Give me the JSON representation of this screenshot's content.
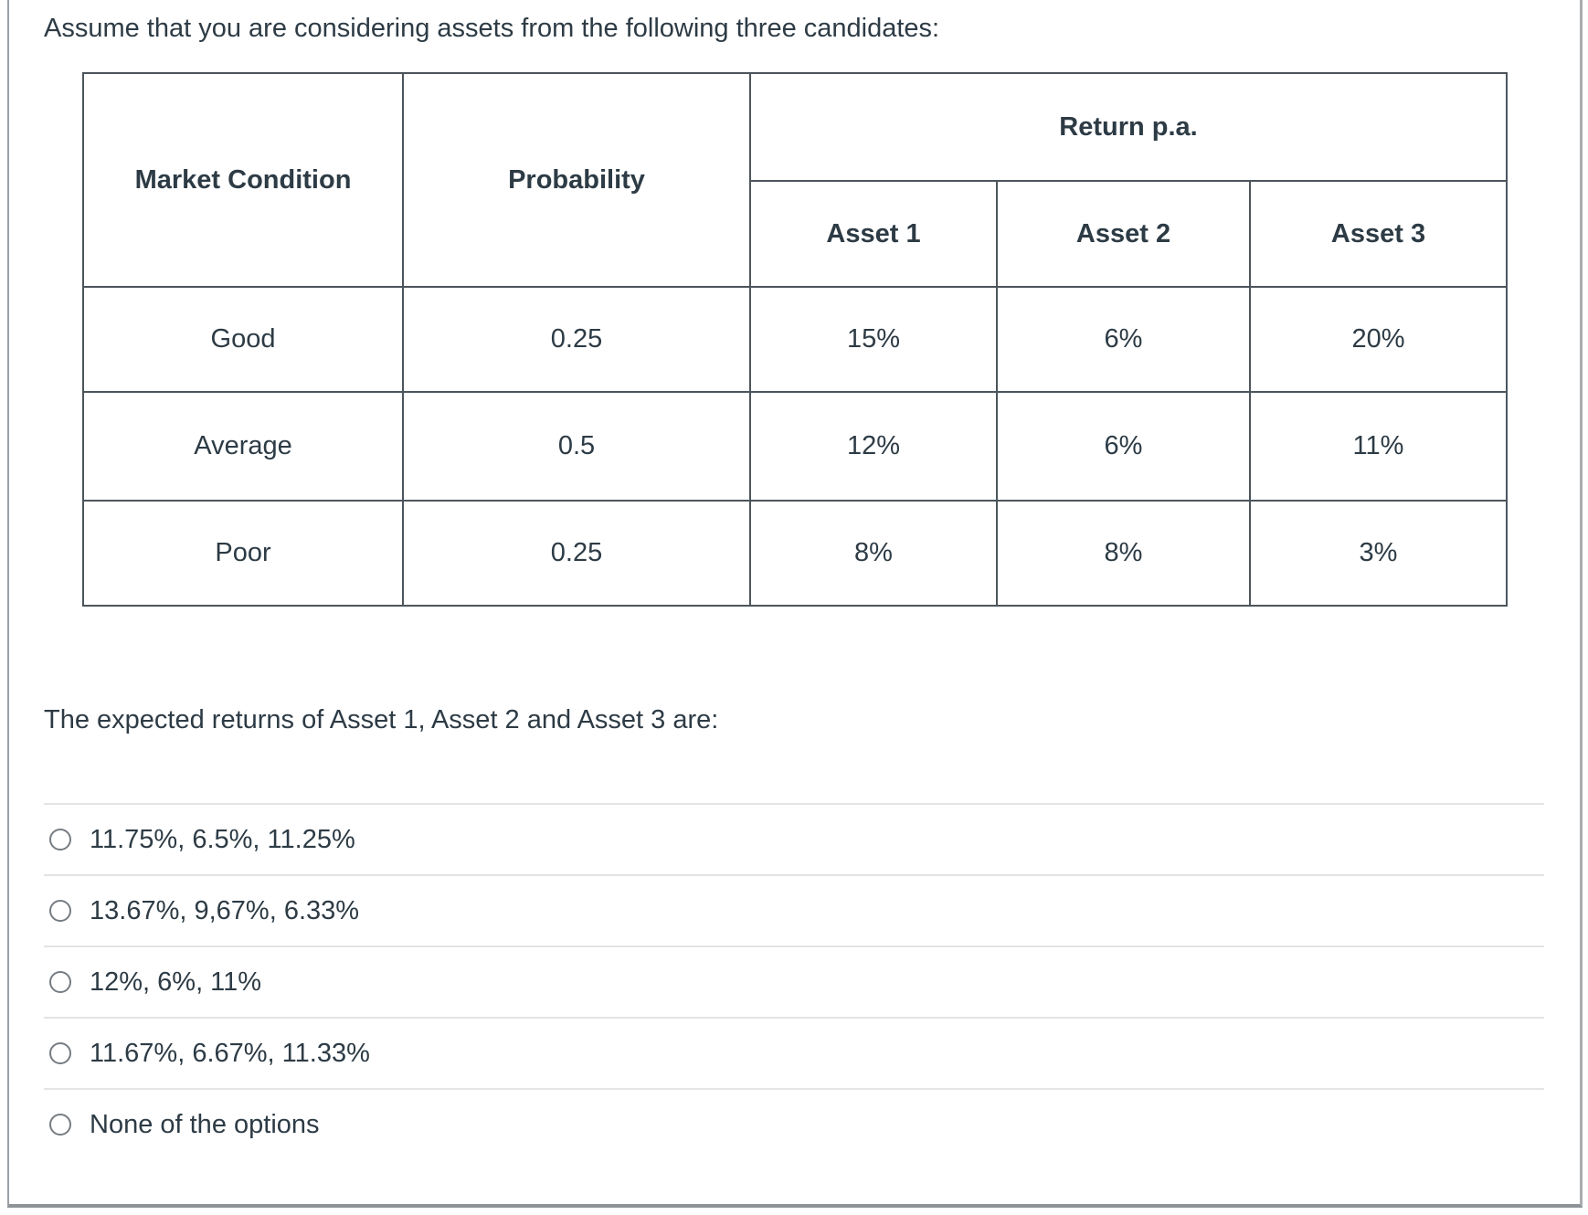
{
  "question": {
    "intro": "Assume that you are considering assets from the following three candidates:",
    "prompt": "The expected returns of Asset 1, Asset 2 and Asset 3 are:"
  },
  "table": {
    "headers": {
      "market_condition": "Market Condition",
      "probability": "Probability",
      "return_pa": "Return p.a.",
      "asset1": "Asset 1",
      "asset2": "Asset 2",
      "asset3": "Asset 3"
    },
    "rows": [
      {
        "condition": "Good",
        "probability": "0.25",
        "asset1": "15%",
        "asset2": "6%",
        "asset3": "20%"
      },
      {
        "condition": "Average",
        "probability": "0.5",
        "asset1": "12%",
        "asset2": "6%",
        "asset3": "11%"
      },
      {
        "condition": "Poor",
        "probability": "0.25",
        "asset1": "8%",
        "asset2": "8%",
        "asset3": "3%"
      }
    ]
  },
  "options": [
    {
      "label": "11.75%, 6.5%, 11.25%",
      "selected": false
    },
    {
      "label": "13.67%, 9,67%, 6.33%",
      "selected": false
    },
    {
      "label": "12%, 6%, 11%",
      "selected": false
    },
    {
      "label": "11.67%, 6.67%, 11.33%",
      "selected": false
    },
    {
      "label": "None of the options",
      "selected": false
    }
  ],
  "colors": {
    "text": "#2D3B45",
    "table_border": "#4c555c",
    "option_divider": "#e2e4e5",
    "radio_border": "#757c82",
    "card_border": "#9aa1a6",
    "background": "#ffffff"
  }
}
